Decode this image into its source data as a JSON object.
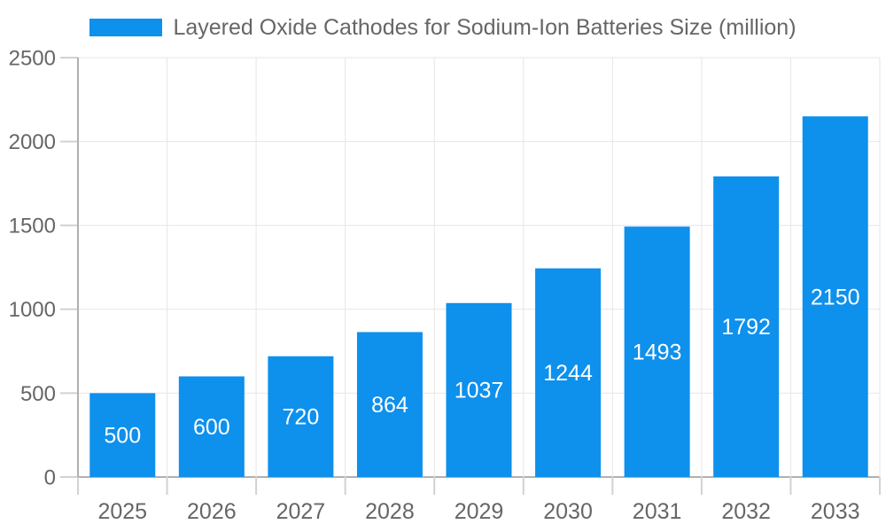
{
  "legend": {
    "label": "Layered Oxide Cathodes for Sodium-Ion Batteries Size (million)"
  },
  "colors": {
    "bar": "#0e90ed",
    "grid_line": "#e6e6e6",
    "axis_line": "#b0b0b0",
    "tick_mark": "#d2d2d2",
    "axis_text": "#666666",
    "value_label_text": "#ffffff",
    "background": "#ffffff"
  },
  "chart_data": {
    "type": "bar",
    "title": "Layered Oxide Cathodes for Sodium-Ion Batteries Size (million)",
    "categories": [
      "2025",
      "2026",
      "2027",
      "2028",
      "2029",
      "2030",
      "2031",
      "2032",
      "2033"
    ],
    "series": [
      {
        "name": "Layered Oxide Cathodes for Sodium-Ion Batteries Size (million)",
        "values": [
          500,
          600,
          720,
          864,
          1037,
          1244,
          1493,
          1792,
          2150
        ]
      }
    ],
    "value_labels": [
      "500",
      "600",
      "720",
      "864",
      "1037",
      "1244",
      "1493",
      "1792",
      "2150"
    ],
    "xlabel": "",
    "ylabel": "",
    "ylim": [
      0,
      2500
    ],
    "yticks": [
      0,
      500,
      1000,
      1500,
      2000,
      2500
    ],
    "grid": true,
    "legend_position": "top",
    "value_label_position": "inside-center"
  }
}
